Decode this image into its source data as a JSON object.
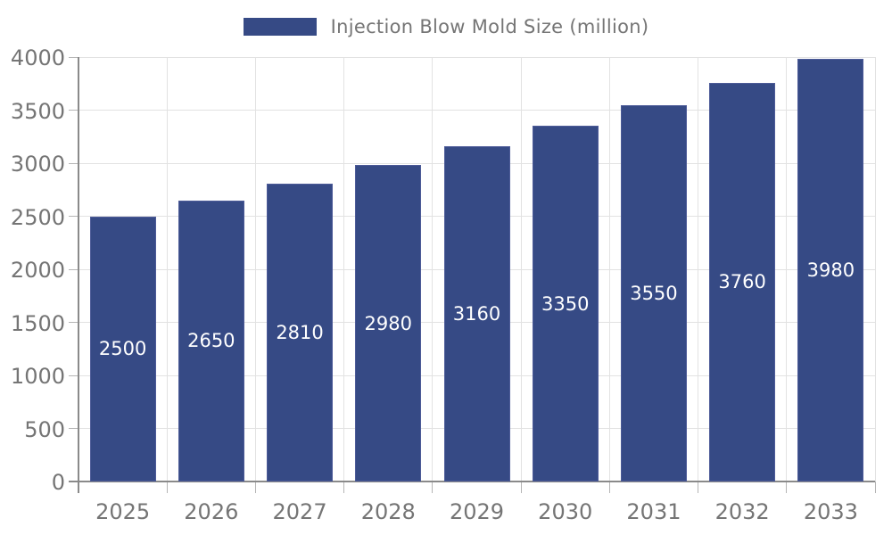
{
  "chart_data": {
    "type": "bar",
    "title": "Injection Blow Mold Size (million)",
    "legend_label": "Injection Blow Mold Size (million)",
    "legend_position": "top-center",
    "categories": [
      "2025",
      "2026",
      "2027",
      "2028",
      "2029",
      "2030",
      "2031",
      "2032",
      "2033"
    ],
    "series": [
      {
        "name": "Injection Blow Mold Size (million)",
        "values": [
          2500,
          2650,
          2810,
          2980,
          3160,
          3350,
          3550,
          3760,
          3980
        ]
      }
    ],
    "value_labels_shown": true,
    "xlabel": "",
    "ylabel": "",
    "ylim": [
      0,
      4000
    ],
    "yticks": [
      0,
      500,
      1000,
      1500,
      2000,
      2500,
      3000,
      3500,
      4000
    ],
    "grid": "on",
    "colors": {
      "bar_fill": "#364a85",
      "bar_edge": "#4d5b98",
      "value_label_text": "#ffffff",
      "axis_text": "#757575",
      "legend_text": "#757575",
      "gridline": "#e2e2e2",
      "axis_line": "#8a8a8a",
      "tick_mark": "#b5b5b5",
      "background": "#ffffff"
    }
  }
}
